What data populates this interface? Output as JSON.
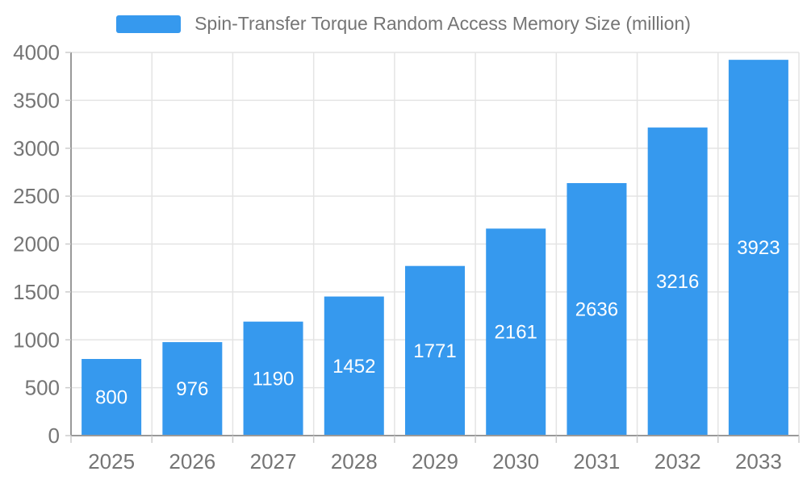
{
  "legend": {
    "label": "Spin-Transfer Torque Random Access Memory Size (million)",
    "swatch_color": "#3699EE",
    "position": "top-center"
  },
  "chart_data": {
    "type": "bar",
    "title": "",
    "xlabel": "",
    "ylabel": "",
    "categories": [
      "2025",
      "2026",
      "2027",
      "2028",
      "2029",
      "2030",
      "2031",
      "2032",
      "2033"
    ],
    "series": [
      {
        "name": "Spin-Transfer Torque Random Access Memory Size (million)",
        "values": [
          800,
          976,
          1190,
          1452,
          1771,
          2161,
          2636,
          3216,
          3923
        ]
      }
    ],
    "ylim": [
      0,
      4000
    ],
    "yticks": [
      0,
      500,
      1000,
      1500,
      2000,
      2500,
      3000,
      3500,
      4000
    ],
    "grid": true,
    "value_labels_position": "inside-center",
    "legend_position": "top"
  },
  "colors": {
    "bar": "#3699EE",
    "bar_label": "#FFFFFF",
    "axis_text": "#757575",
    "legend_text": "#757575",
    "grid_line": "#E4E4E4",
    "tick": "#CCCCCC",
    "axis_line": "#999999",
    "background": "#FFFFFF"
  }
}
